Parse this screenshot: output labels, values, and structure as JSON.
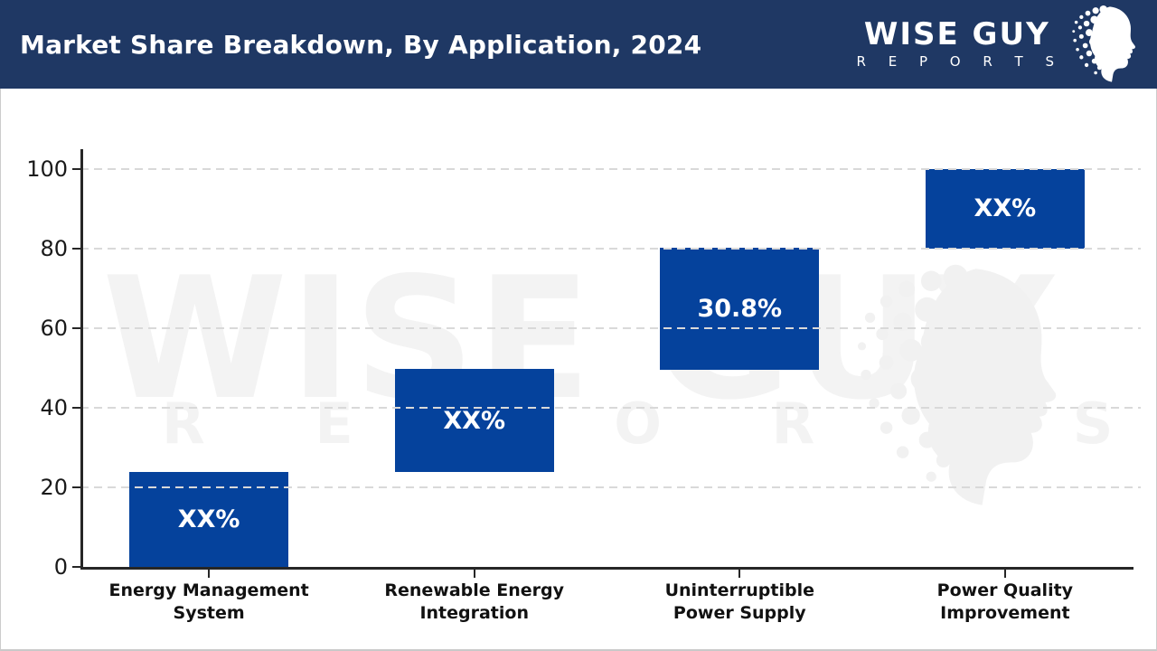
{
  "header": {
    "title": "Market Share Breakdown, By Application, 2024",
    "bg_color": "#1f3864",
    "logo": {
      "line1": "WISE GUY",
      "line2": "R E P O R T S"
    }
  },
  "watermark": {
    "line1": "WISE GUY",
    "line2": "R E P O R T S"
  },
  "chart_data": {
    "type": "bar",
    "variant": "floating-waterfall",
    "title": "Market Share Breakdown, By Application, 2024",
    "xlabel": "",
    "ylabel": "",
    "categories": [
      "Energy Management\nSystem",
      "Renewable Energy\nIntegration",
      "Uninterruptible\nPower Supply",
      "Power Quality\nImprovement"
    ],
    "segments": [
      {
        "start": 0,
        "end": 23.9,
        "label": "XX%"
      },
      {
        "start": 23.9,
        "end": 49.7,
        "label": "XX%"
      },
      {
        "start": 49.5,
        "end": 80.3,
        "label": "30.8%"
      },
      {
        "start": 80.1,
        "end": 100,
        "label": "XX%"
      }
    ],
    "yticks": [
      0,
      20,
      40,
      60,
      80,
      100
    ],
    "ylim": [
      0,
      105
    ],
    "grid": "horizontal dashed, drawn above bars",
    "legend": "none",
    "bar_color": "#05429c",
    "bar_label_color": "#ffffff",
    "axis_color": "#262626",
    "grid_color": "#d9d9d9"
  }
}
